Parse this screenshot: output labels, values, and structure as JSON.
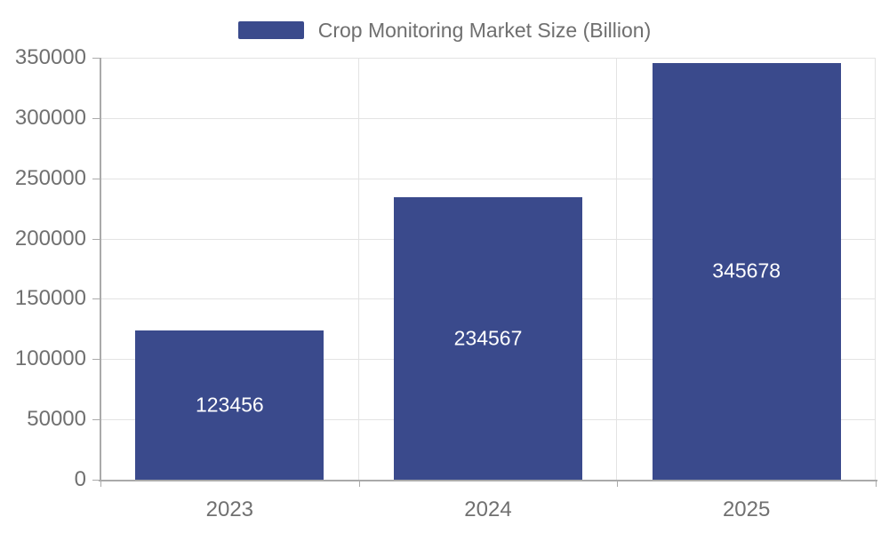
{
  "legend": {
    "label": "Crop Monitoring Market Size (Billion)",
    "position": "top-center"
  },
  "chart_data": {
    "type": "bar",
    "title": "Crop Monitoring Market Size (Billion)",
    "categories": [
      "2023",
      "2024",
      "2025"
    ],
    "values": [
      123456,
      234567,
      345678
    ],
    "data_labels": [
      "123456",
      "234567",
      "345678"
    ],
    "xlabel": "",
    "ylabel": "",
    "ylim": [
      0,
      350000
    ],
    "yticks": [
      0,
      50000,
      100000,
      150000,
      200000,
      250000,
      300000,
      350000
    ],
    "ytick_labels": [
      "0",
      "50000",
      "100000",
      "150000",
      "200000",
      "250000",
      "300000",
      "350000"
    ],
    "grid": "on",
    "legend_position": "top",
    "colors": {
      "bar": "#3A4A8C",
      "bar_label": "#FFFFFF",
      "axis_text": "#707070",
      "title_text": "#6F6F6F",
      "axis_line": "#AAAAAA",
      "grid_line": "#E3E3E3",
      "background": "#FFFFFF"
    }
  }
}
